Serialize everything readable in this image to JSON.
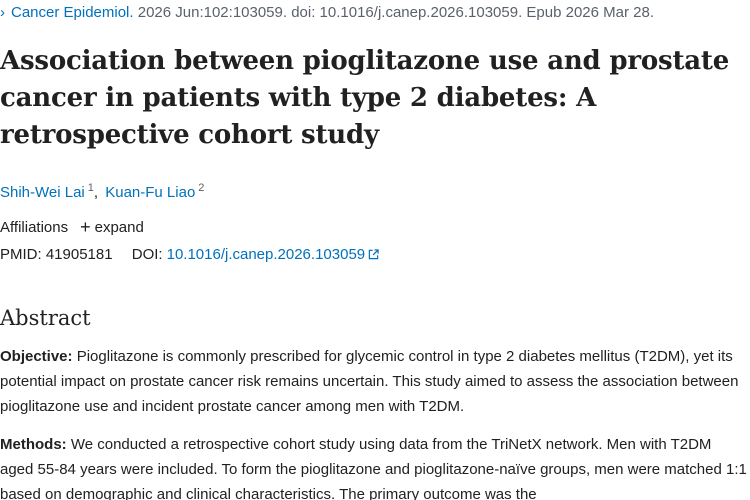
{
  "citation": {
    "chevron": "›",
    "journal": "Cancer Epidemiol.",
    "details": " 2026 Jun:102:103059. doi: 10.1016/j.canep.2026.103059. Epub 2026 Mar 28."
  },
  "title": "Association between pioglitazone use and prostate cancer in patients with type 2 diabetes: A retrospective cohort study",
  "authors": [
    {
      "name": "Shih-Wei Lai",
      "sup": "1"
    },
    {
      "name": "Kuan-Fu Liao",
      "sup": "2"
    }
  ],
  "author_separator": ",",
  "affiliations": {
    "label": "Affiliations",
    "plus": "+",
    "expand": "expand"
  },
  "ids": {
    "pmid_label": "PMID:",
    "pmid": "41905181",
    "doi_label": "DOI:",
    "doi": "10.1016/j.canep.2026.103059"
  },
  "abstract": {
    "heading": "Abstract",
    "objective_label": "Objective:",
    "objective_text": " Pioglitazone is commonly prescribed for glycemic control in type 2 diabetes mellitus (T2DM), yet its potential impact on prostate cancer risk remains uncertain. This study aimed to assess the association between pioglitazone use and incident prostate cancer among men with T2DM.",
    "methods_label": "Methods:",
    "methods_text": " We conducted a retrospective cohort study using data from the TriNetX network. Men with T2DM aged 55-84 years were included. To form the pioglitazone and pioglitazone-naïve groups, men were matched 1:1 based on demographic and clinical characteristics. The primary outcome was the"
  },
  "colors": {
    "link": "#0071bc",
    "text": "#212121",
    "muted": "#5b616b"
  },
  "icons": {
    "external_link": "external-link-icon",
    "chevron": "chevron-right-icon",
    "plus": "plus-icon"
  }
}
